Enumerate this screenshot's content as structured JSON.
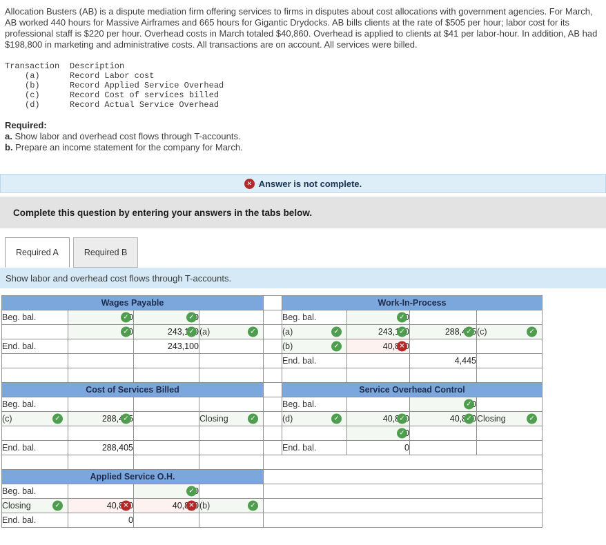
{
  "intro": "Allocation Busters (AB) is a dispute mediation firm offering services to firms in disputes about cost allocations with government agencies. For March, AB worked 440 hours for Massive Airframes and 665 hours for Gigantic Drydocks. AB bills clients at the rate of $505 per hour; labor cost for its professional staff is $220 per hour. Overhead costs in March totaled $40,860. Overhead is applied to clients at $41 per labor-hour. In addition, AB had $198,800 in marketing and administrative costs. All transactions are on account. All services were billed.",
  "transactions": {
    "headers": [
      "Transaction",
      "Description"
    ],
    "rows": [
      {
        "id": "(a)",
        "desc": "Record Labor cost"
      },
      {
        "id": "(b)",
        "desc": "Record Applied Service Overhead"
      },
      {
        "id": "(c)",
        "desc": "Record Cost of services billed"
      },
      {
        "id": "(d)",
        "desc": "Record Actual Service Overhead"
      }
    ]
  },
  "required": {
    "heading": "Required:",
    "items": [
      {
        "prefix": "a.",
        "text": " Show labor and overhead cost flows through T-accounts."
      },
      {
        "prefix": "b.",
        "text": " Prepare an income statement for the company for March."
      }
    ]
  },
  "status": {
    "message": "Answer is not complete."
  },
  "instruction": "Complete this question by entering your answers in the tabs below.",
  "tabs": [
    {
      "label": "Required A",
      "active": true
    },
    {
      "label": "Required B",
      "active": false
    }
  ],
  "tab_caption": "Show labor and overhead cost flows through T-accounts.",
  "colors": {
    "taccount_header_blue": "#7ba7dc",
    "banner_blue": "#ddeef9",
    "check_green": "#4f9e4f",
    "error_red": "#b12b2b",
    "correct_cell_bg": "#f4f8f2",
    "wrong_cell_bg": "#fdf2f0"
  },
  "t_accounts": {
    "account_titles_left": [
      "Wages Payable",
      "Cost of Services Billed",
      "Applied Service O.H."
    ],
    "account_titles_right": [
      "Work-In-Process",
      "Service Overhead Control"
    ],
    "grid": [
      [
        {
          "k": "h",
          "t": "Wages Payable",
          "cs": 4
        },
        {
          "k": "sp"
        },
        {
          "k": "h",
          "t": "Work-In-Process",
          "cs": 4
        }
      ],
      [
        {
          "k": "lab",
          "t": "Beg. bal."
        },
        {
          "k": "val",
          "t": "0",
          "i": "check"
        },
        {
          "k": "val",
          "t": "0",
          "i": "check"
        },
        {
          "k": "blank"
        },
        {
          "k": "sp"
        },
        {
          "k": "lab",
          "t": "Beg. bal."
        },
        {
          "k": "val",
          "t": "0",
          "i": "check"
        },
        {
          "k": "blank"
        },
        {
          "k": "blank"
        }
      ],
      [
        {
          "k": "blank"
        },
        {
          "k": "val",
          "t": "0",
          "i": "check"
        },
        {
          "k": "val",
          "t": "243,100",
          "i": "check"
        },
        {
          "k": "lab",
          "t": "(a)",
          "i": "check"
        },
        {
          "k": "sp"
        },
        {
          "k": "lab",
          "t": "(a)",
          "i": "check"
        },
        {
          "k": "val",
          "t": "243,100",
          "i": "check"
        },
        {
          "k": "val",
          "t": "288,405",
          "i": "check"
        },
        {
          "k": "lab",
          "t": "(c)",
          "i": "check"
        }
      ],
      [
        {
          "k": "lab",
          "t": "End. bal."
        },
        {
          "k": "blank",
          "u": true
        },
        {
          "k": "val",
          "t": "243,100",
          "u": true
        },
        {
          "k": "blank"
        },
        {
          "k": "sp"
        },
        {
          "k": "lab",
          "t": "(b)",
          "i": "check"
        },
        {
          "k": "val",
          "t": "40,860",
          "i": "x"
        },
        {
          "k": "blank"
        },
        {
          "k": "blank"
        }
      ],
      [
        {
          "k": "blank"
        },
        {
          "k": "blank"
        },
        {
          "k": "blank"
        },
        {
          "k": "blank"
        },
        {
          "k": "sp"
        },
        {
          "k": "lab",
          "t": "End. bal."
        },
        {
          "k": "blank",
          "u": true
        },
        {
          "k": "val",
          "t": "4,445",
          "u": true
        },
        {
          "k": "blank"
        }
      ],
      [
        {
          "k": "blank"
        },
        {
          "k": "blank"
        },
        {
          "k": "blank"
        },
        {
          "k": "blank"
        },
        {
          "k": "sp"
        },
        {
          "k": "blank"
        },
        {
          "k": "blank"
        },
        {
          "k": "blank"
        },
        {
          "k": "blank"
        }
      ],
      [
        {
          "k": "h",
          "t": "Cost of Services Billed",
          "cs": 4
        },
        {
          "k": "sp"
        },
        {
          "k": "h",
          "t": "Service Overhead Control",
          "cs": 4
        }
      ],
      [
        {
          "k": "lab",
          "t": "Beg. bal."
        },
        {
          "k": "blank"
        },
        {
          "k": "blank"
        },
        {
          "k": "blank"
        },
        {
          "k": "sp"
        },
        {
          "k": "lab",
          "t": "Beg. bal."
        },
        {
          "k": "blank"
        },
        {
          "k": "val",
          "t": "0",
          "i": "check"
        },
        {
          "k": "blank"
        }
      ],
      [
        {
          "k": "lab",
          "t": "(c)",
          "i": "check"
        },
        {
          "k": "val",
          "t": "288,405",
          "i": "check"
        },
        {
          "k": "blank"
        },
        {
          "k": "lab",
          "t": "Closing",
          "i": "check"
        },
        {
          "k": "sp"
        },
        {
          "k": "lab",
          "t": "(d)",
          "i": "check"
        },
        {
          "k": "val",
          "t": "40,860",
          "i": "check"
        },
        {
          "k": "val",
          "t": "40,860",
          "i": "check"
        },
        {
          "k": "lab",
          "t": "Closing",
          "i": "check"
        }
      ],
      [
        {
          "k": "blank"
        },
        {
          "k": "blank"
        },
        {
          "k": "blank"
        },
        {
          "k": "blank"
        },
        {
          "k": "sp"
        },
        {
          "k": "blank"
        },
        {
          "k": "val",
          "t": "0",
          "i": "check"
        },
        {
          "k": "blank"
        },
        {
          "k": "blank"
        }
      ],
      [
        {
          "k": "lab",
          "t": "End. bal."
        },
        {
          "k": "val",
          "t": "288,405",
          "u": true
        },
        {
          "k": "blank",
          "u": true
        },
        {
          "k": "blank"
        },
        {
          "k": "sp"
        },
        {
          "k": "lab",
          "t": "End. bal."
        },
        {
          "k": "val",
          "t": "0",
          "u": true
        },
        {
          "k": "blank",
          "u": true
        },
        {
          "k": "blank"
        }
      ],
      [
        {
          "k": "blank"
        },
        {
          "k": "blank"
        },
        {
          "k": "blank"
        },
        {
          "k": "blank"
        },
        {
          "k": "ghost",
          "cs": 5
        }
      ],
      [
        {
          "k": "h",
          "t": "Applied Service O.H.",
          "cs": 4
        },
        {
          "k": "ghost",
          "cs": 5
        }
      ],
      [
        {
          "k": "lab",
          "t": "Beg. bal."
        },
        {
          "k": "blank"
        },
        {
          "k": "val",
          "t": "0",
          "i": "check"
        },
        {
          "k": "blank"
        },
        {
          "k": "ghost",
          "cs": 5
        }
      ],
      [
        {
          "k": "lab",
          "t": "Closing",
          "i": "check"
        },
        {
          "k": "val",
          "t": "40,860",
          "i": "x"
        },
        {
          "k": "val",
          "t": "40,860",
          "i": "x"
        },
        {
          "k": "lab",
          "t": "(b)",
          "i": "check"
        },
        {
          "k": "ghost",
          "cs": 5
        }
      ],
      [
        {
          "k": "lab",
          "t": "End. bal."
        },
        {
          "k": "val",
          "t": "0",
          "u": true
        },
        {
          "k": "blank",
          "u": true
        },
        {
          "k": "blank"
        },
        {
          "k": "ghost",
          "cs": 5
        }
      ]
    ]
  }
}
